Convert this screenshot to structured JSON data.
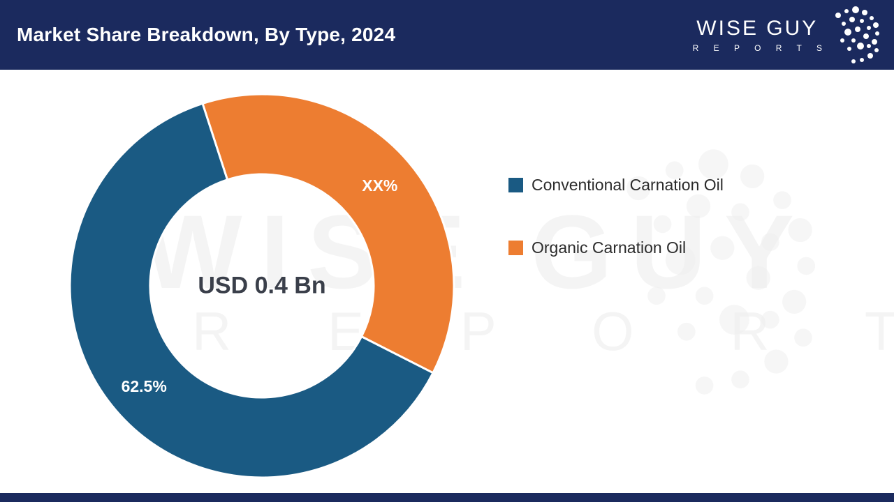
{
  "header": {
    "title": "Market Share Breakdown, By Type, 2024",
    "bg_color": "#1b2a5e",
    "logo": {
      "line1": "WISE GUY",
      "line2": "R E P O R T S"
    }
  },
  "watermark": {
    "line1": "WISE GUY",
    "line2": "R E P O R T S"
  },
  "chart_data": {
    "type": "pie",
    "title": "Market Share Breakdown, By Type, 2024",
    "donut": true,
    "center_label": "USD 0.4 Bn",
    "start_angle_deg": -18,
    "slices": [
      {
        "label": "Organic Carnation Oil",
        "value": 37.5,
        "display": "XX%",
        "color": "#ed7d31"
      },
      {
        "label": "Conventional Carnation Oil",
        "value": 62.5,
        "display": "62.5%",
        "color": "#1a5a83"
      }
    ],
    "legend": [
      {
        "label": "Conventional Carnation Oil",
        "color": "#1a5a83"
      },
      {
        "label": "Organic Carnation Oil",
        "color": "#ed7d31"
      }
    ],
    "legend_position": "right"
  },
  "footer": {
    "bg_color": "#1b2a5e"
  }
}
